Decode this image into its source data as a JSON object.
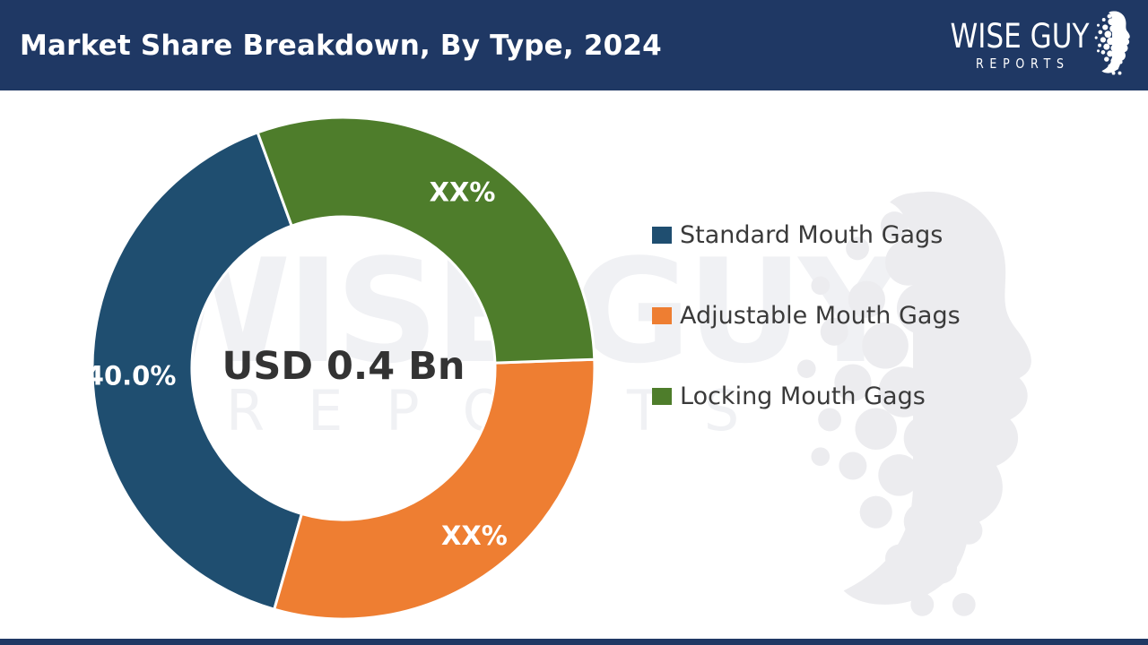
{
  "header": {
    "title": "Market Share Breakdown, By Type, 2024",
    "logo_line1": "WISE GUY",
    "logo_line2": "REPORTS"
  },
  "chart_data": {
    "type": "pie",
    "subtype": "donut",
    "title": "Market Share Breakdown, By Type, 2024",
    "center_label": "USD 0.4 Bn",
    "start_angle_deg": 110,
    "direction": "counterclockwise",
    "inner_radius_ratio": 0.6,
    "legend_position": "right",
    "segments": [
      {
        "label": "Standard Mouth Gags",
        "value_pct": 40.0,
        "display_pct": "40.0%",
        "color": "#1f4e70"
      },
      {
        "label": "Adjustable Mouth Gags",
        "value_pct": 30.0,
        "display_pct": "XX%",
        "color": "#ee7e32"
      },
      {
        "label": "Locking Mouth Gags",
        "value_pct": 30.0,
        "display_pct": "XX%",
        "color": "#4e7d2b"
      }
    ]
  },
  "watermark": {
    "line1": "WISE GUY",
    "line2": "REPORTS"
  },
  "colors": {
    "header_bg": "#1f3864",
    "footer_bg": "#1f3864",
    "segment_label_text": "#ffffff",
    "center_label_text": "#333333",
    "legend_text": "#3a3a3a",
    "watermark": "#f0f1f4"
  }
}
